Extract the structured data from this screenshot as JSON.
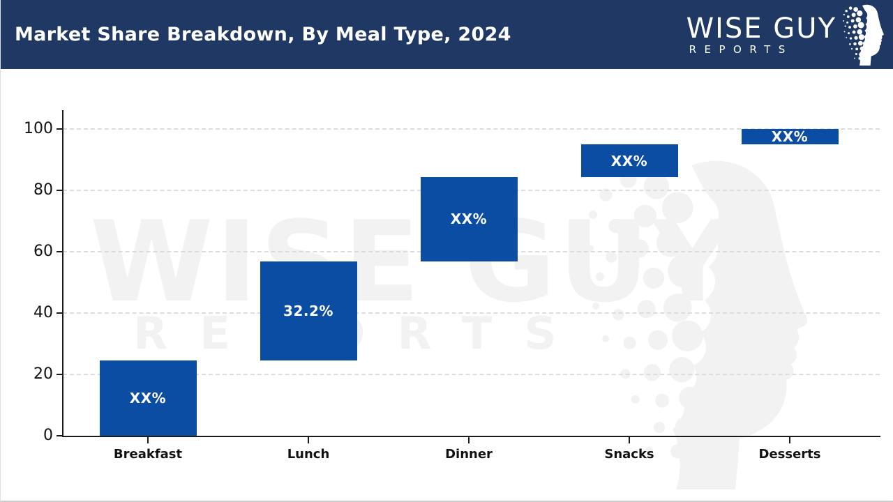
{
  "header": {
    "title": "Market Share Breakdown, By Meal Type, 2024",
    "logo": {
      "line1": "WISE GUY",
      "line2": "REPORTS"
    }
  },
  "watermark": {
    "line1": "WISE GUY",
    "line2": "REPORTS"
  },
  "colors": {
    "header_bg": "#1f3864",
    "bar_blue": "#0b4da2",
    "grid": "#dcdcdc",
    "watermark": "#f2f2f2",
    "axis": "#1a1a1a",
    "bar_label": "#ffffff"
  },
  "chart_data": {
    "type": "bar",
    "subtype": "waterfall",
    "title": "Market Share Breakdown, By Meal Type, 2024",
    "categories": [
      "Breakfast",
      "Lunch",
      "Dinner",
      "Snacks",
      "Desserts"
    ],
    "segments": [
      {
        "category": "Breakfast",
        "label": "XX%",
        "start": 0,
        "end": 24.6,
        "value_shown": "XX%"
      },
      {
        "category": "Lunch",
        "label": "32.2%",
        "start": 24.6,
        "end": 56.8,
        "value_shown": "32.2%"
      },
      {
        "category": "Dinner",
        "label": "XX%",
        "start": 56.8,
        "end": 84.4,
        "value_shown": "XX%"
      },
      {
        "category": "Snacks",
        "label": "XX%",
        "start": 84.4,
        "end": 94.9,
        "value_shown": "XX%"
      },
      {
        "category": "Desserts",
        "label": "XX%",
        "start": 94.9,
        "end": 100,
        "value_shown": "XX%"
      }
    ],
    "yticks": [
      0,
      20,
      40,
      60,
      80,
      100
    ],
    "ylim": [
      0,
      106
    ],
    "xlabel": "",
    "ylabel": "",
    "grid": true,
    "gridstyle": "dashed",
    "legend": "none"
  }
}
